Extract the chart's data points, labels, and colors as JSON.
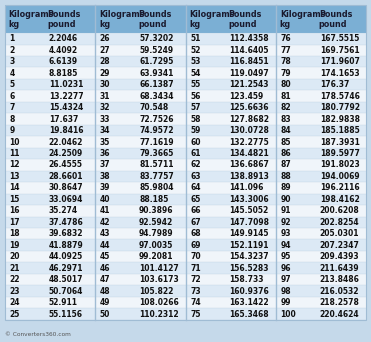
{
  "col_headers": [
    "Kilograms\nkg",
    "Pounds\npound",
    "Kilograms\nkg",
    "Pounds\npound",
    "Kilograms\nkg",
    "Pounds\npound",
    "Kilograms\nkg",
    "Pounds\npound"
  ],
  "rows": [
    [
      1,
      "2.2046",
      26,
      "57.3202",
      51,
      "112.4358",
      76,
      "167.5515"
    ],
    [
      2,
      "4.4092",
      27,
      "59.5249",
      52,
      "114.6405",
      77,
      "169.7561"
    ],
    [
      3,
      "6.6139",
      28,
      "61.7295",
      53,
      "116.8451",
      78,
      "171.9607"
    ],
    [
      4,
      "8.8185",
      29,
      "63.9341",
      54,
      "119.0497",
      79,
      "174.1653"
    ],
    [
      5,
      "11.0231",
      30,
      "66.1387",
      55,
      "121.2543",
      80,
      "176.37"
    ],
    [
      6,
      "13.2277",
      31,
      "68.3434",
      56,
      "123.459",
      81,
      "178.5746"
    ],
    [
      7,
      "15.4324",
      32,
      "70.548",
      57,
      "125.6636",
      82,
      "180.7792"
    ],
    [
      8,
      "17.637",
      33,
      "72.7526",
      58,
      "127.8682",
      83,
      "182.9838"
    ],
    [
      9,
      "19.8416",
      34,
      "74.9572",
      59,
      "130.0728",
      84,
      "185.1885"
    ],
    [
      10,
      "22.0462",
      35,
      "77.1619",
      60,
      "132.2775",
      85,
      "187.3931"
    ],
    [
      11,
      "24.2509",
      36,
      "79.3665",
      61,
      "134.4821",
      86,
      "189.5977"
    ],
    [
      12,
      "26.4555",
      37,
      "81.5711",
      62,
      "136.6867",
      87,
      "191.8023"
    ],
    [
      13,
      "28.6601",
      38,
      "83.7757",
      63,
      "138.8913",
      88,
      "194.0069"
    ],
    [
      14,
      "30.8647",
      39,
      "85.9804",
      64,
      "141.096",
      89,
      "196.2116"
    ],
    [
      15,
      "33.0694",
      40,
      "88.185",
      65,
      "143.3006",
      90,
      "198.4162"
    ],
    [
      16,
      "35.274",
      41,
      "90.3896",
      66,
      "145.5052",
      91,
      "200.6208"
    ],
    [
      17,
      "37.4786",
      42,
      "92.5942",
      67,
      "147.7098",
      92,
      "202.8254"
    ],
    [
      18,
      "39.6832",
      43,
      "94.7989",
      68,
      "149.9145",
      93,
      "205.0301"
    ],
    [
      19,
      "41.8879",
      44,
      "97.0035",
      69,
      "152.1191",
      94,
      "207.2347"
    ],
    [
      20,
      "44.0925",
      45,
      "99.2081",
      70,
      "154.3237",
      95,
      "209.4393"
    ],
    [
      21,
      "46.2971",
      46,
      "101.4127",
      71,
      "156.5283",
      96,
      "211.6439"
    ],
    [
      22,
      "48.5017",
      47,
      "103.6173",
      72,
      "158.733",
      97,
      "213.8486"
    ],
    [
      23,
      "50.7064",
      48,
      "105.822",
      73,
      "160.9376",
      98,
      "216.0532"
    ],
    [
      24,
      "52.911",
      49,
      "108.0266",
      74,
      "163.1422",
      99,
      "218.2578"
    ],
    [
      25,
      "55.1156",
      50,
      "110.2312",
      75,
      "165.3468",
      100,
      "220.4624"
    ]
  ],
  "header_bg": "#7bafd4",
  "row_bg_odd": "#dce9f5",
  "row_bg_even": "#f0f5fa",
  "outer_bg": "#c5d9ea",
  "header_text_color": "#1a1a2e",
  "data_text_color": "#111111",
  "footer_text": "© Converters360.com",
  "divider_color": "#a0bcd4",
  "col_widths_rel": [
    0.85,
    1.2,
    0.85,
    1.2,
    0.85,
    1.2,
    0.85,
    1.2
  ],
  "header_fontsize": 5.8,
  "data_fontsize": 5.5,
  "footer_fontsize": 4.2
}
